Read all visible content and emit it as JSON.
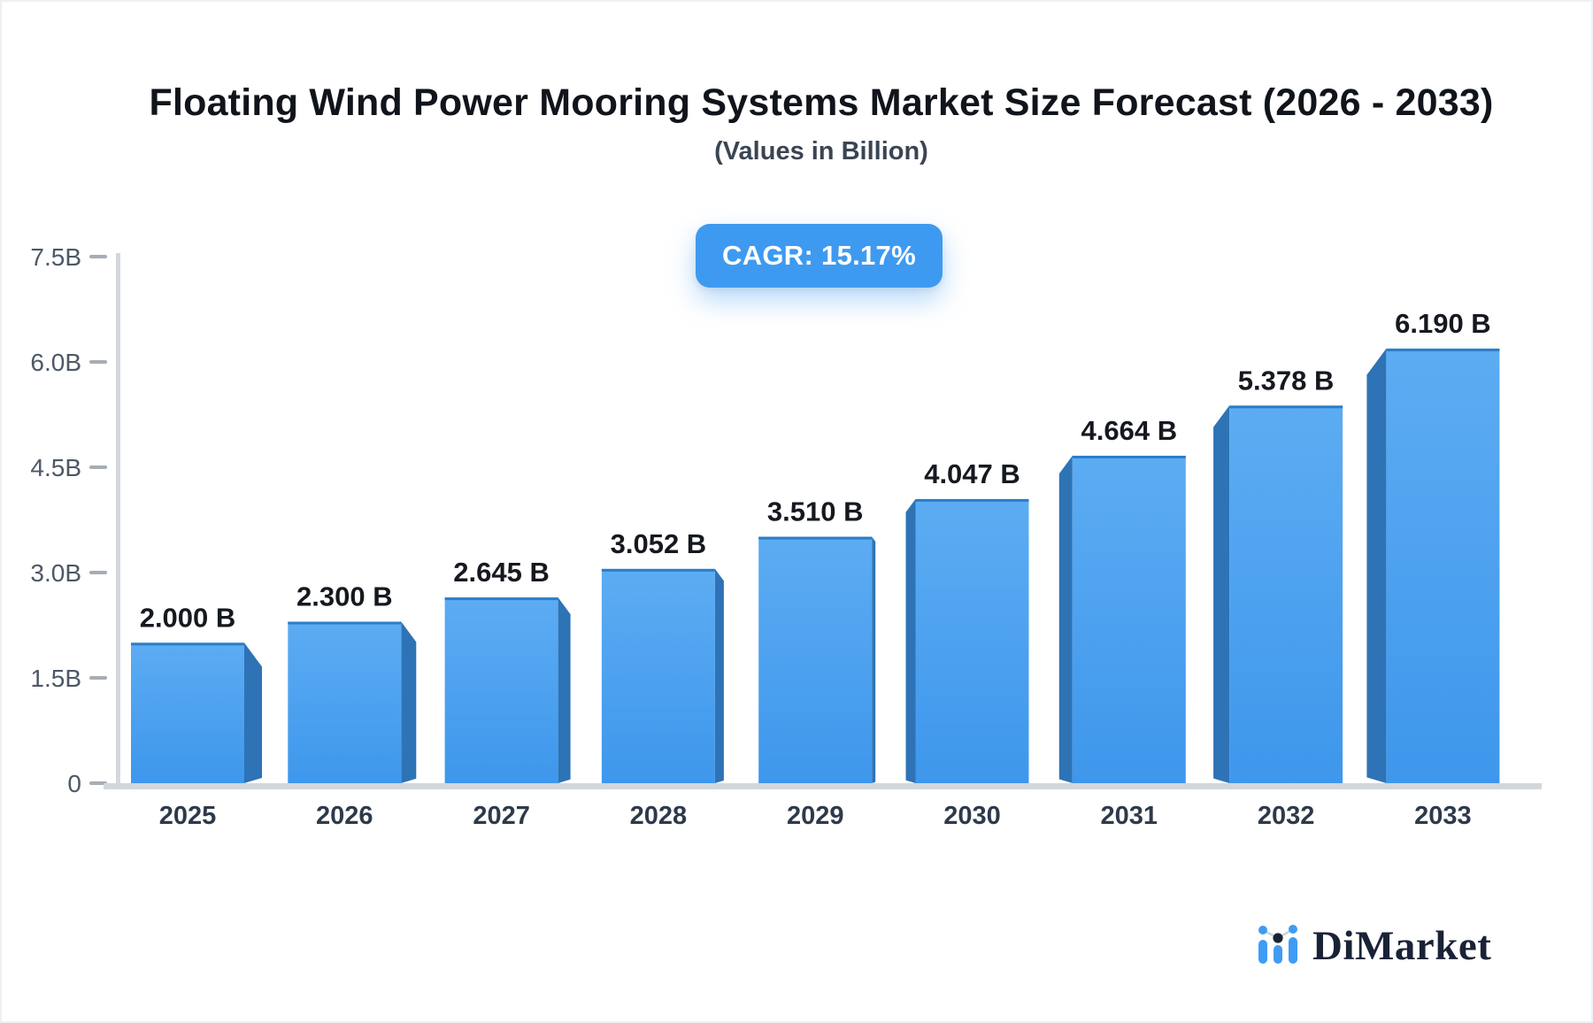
{
  "header": {
    "title": "Floating Wind Power Mooring Systems Market Size Forecast (2026 - 2033)",
    "subtitle": "(Values in Billion)"
  },
  "badge": {
    "label": "CAGR: 15.17%"
  },
  "chart_data": {
    "type": "bar",
    "title": "Floating Wind Power Mooring Systems Market Size Forecast (2026 - 2033)",
    "subtitle": "(Values in Billion)",
    "unit": "Billion",
    "categories": [
      "2025",
      "2026",
      "2027",
      "2028",
      "2029",
      "2030",
      "2031",
      "2032",
      "2033"
    ],
    "values": [
      2.0,
      2.3,
      2.645,
      3.052,
      3.51,
      4.047,
      4.664,
      5.378,
      6.19
    ],
    "value_labels": [
      "2.000 B",
      "2.300 B",
      "2.645 B",
      "3.052 B",
      "3.510 B",
      "4.047 B",
      "4.664 B",
      "5.378 B",
      "6.190 B"
    ],
    "xlabel": "",
    "ylabel": "",
    "ylim": [
      0,
      7.5
    ],
    "y_ticks": [
      {
        "value": 0,
        "label": "0"
      },
      {
        "value": 1.5,
        "label": "1.5B"
      },
      {
        "value": 3.0,
        "label": "3.0B"
      },
      {
        "value": 4.5,
        "label": "4.5B"
      },
      {
        "value": 6.0,
        "label": "6.0B"
      },
      {
        "value": 7.5,
        "label": "7.5B"
      }
    ],
    "grid": false,
    "legend": "none",
    "style": "3d-bars-center-perspective"
  },
  "logo": {
    "text": "DiMarket"
  },
  "colors": {
    "accent": "#3E9AF0",
    "bar_face_top": "#5CACF2",
    "bar_face_bottom": "#3E97EC",
    "bar_side": "#2E73B5",
    "bar_top_edge": "#2B7DC9",
    "floor": "#D3D7DC",
    "axis": "#D4D8DD",
    "tick": "#A6ADB6",
    "y_label": "#4D5866",
    "x_label": "#2E3A4B",
    "value_label": "#15191F",
    "title": "#10141B",
    "subtitle": "#3A4553",
    "logo_navy": "#1A2336",
    "logo_blue": "#3F9CF4",
    "logo_line": "#C9D4E0"
  }
}
